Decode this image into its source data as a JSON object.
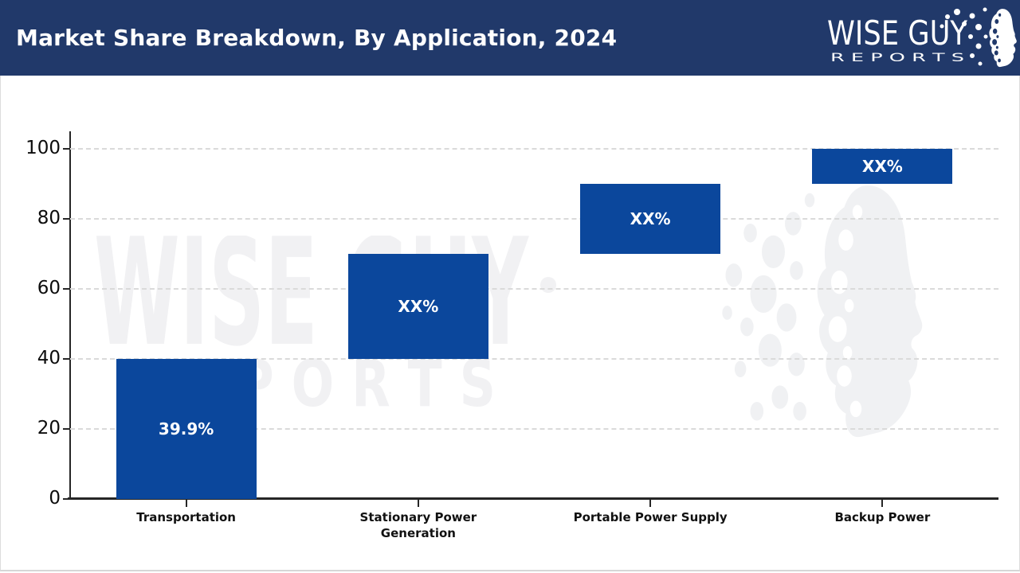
{
  "header": {
    "title": "Market Share Breakdown, By Application, 2024",
    "logo": {
      "wordmark": "WISE GUY",
      "subtext": "R E P O R T S"
    }
  },
  "watermark": {
    "wordmark": "WISE GUY",
    "subtext": "R E P O R T S"
  },
  "colors": {
    "header_bg": "#21396a",
    "bar": "#0b479c",
    "axis": "#262626",
    "grid": "#dadada",
    "tick_text": "#0d0d0d",
    "bar_label_text": "#ffffff",
    "watermark_gray": "#f0f1f3"
  },
  "chart_data": {
    "type": "bar",
    "subtype": "floating stacked percentage segments (waterfall-style market share)",
    "title": "Market Share Breakdown, By Application, 2024",
    "categories": [
      "Transportation",
      "Stationary Power Generation",
      "Portable Power Supply",
      "Backup Power"
    ],
    "segments": [
      {
        "category": "Transportation",
        "label": "39.9%",
        "range": [
          0,
          40
        ]
      },
      {
        "category": "Stationary Power Generation",
        "label": "XX%",
        "range": [
          40,
          70
        ]
      },
      {
        "category": "Portable Power Supply",
        "label": "XX%",
        "range": [
          70,
          90
        ]
      },
      {
        "category": "Backup Power",
        "label": "XX%",
        "range": [
          90,
          100
        ]
      }
    ],
    "xlabel": "",
    "ylabel": "",
    "y_ticks": [
      0,
      20,
      40,
      60,
      80,
      100
    ],
    "ylim": [
      0,
      105
    ],
    "grid": "horizontal-dashed",
    "legend": "none",
    "bar_color": "#0b479c"
  }
}
